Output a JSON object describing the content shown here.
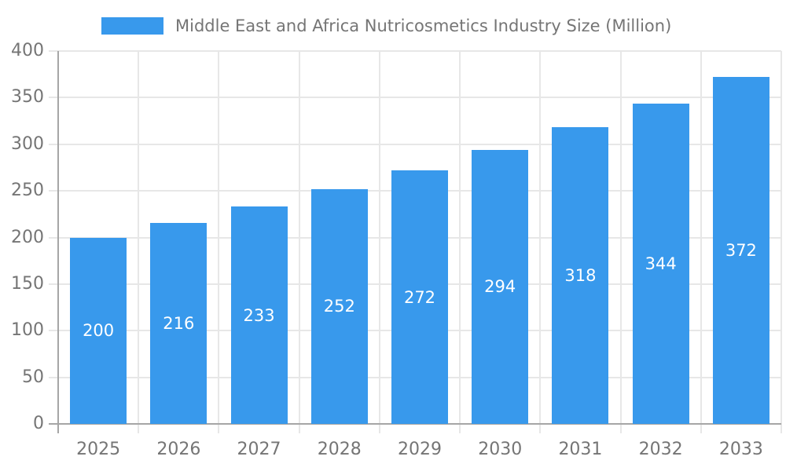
{
  "chart_data": {
    "type": "bar",
    "title": "Middle East and Africa Nutricosmetics Industry Size (Million)",
    "legend_entries": [
      "Middle East and Africa Nutricosmetics Industry Size (Million)"
    ],
    "legend_position": "top",
    "categories": [
      "2025",
      "2026",
      "2027",
      "2028",
      "2029",
      "2030",
      "2031",
      "2032",
      "2033"
    ],
    "values": [
      200,
      216,
      233,
      252,
      272,
      294,
      318,
      344,
      372
    ],
    "xlabel": "",
    "ylabel": "",
    "ylim": [
      0,
      400
    ],
    "yticks": [
      0,
      50,
      100,
      150,
      200,
      250,
      300,
      350,
      400
    ],
    "grid": true,
    "value_labels": "inside-center",
    "colors": {
      "bar": "#3899EC",
      "axis": "#A6A6A6",
      "grid": "#E7E7E7",
      "tick_text": "#757575",
      "value_text": "#FFFFFF"
    }
  }
}
